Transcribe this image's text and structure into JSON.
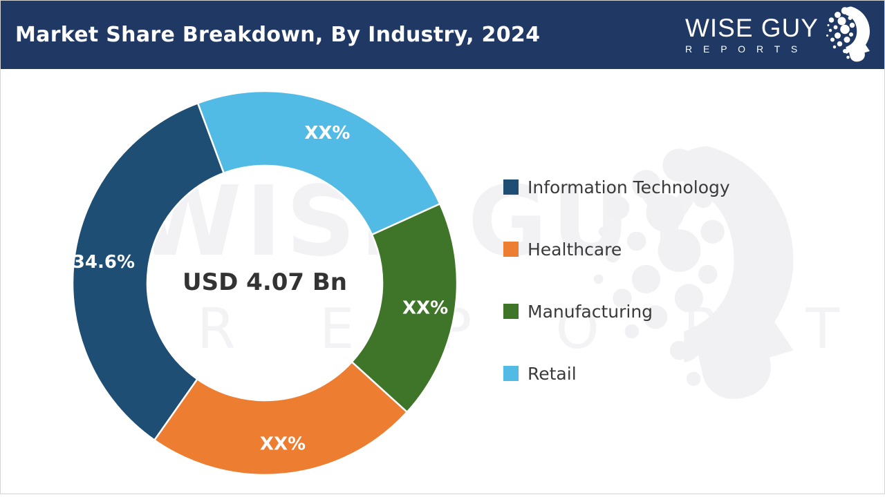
{
  "header": {
    "title": "Market Share Breakdown, By Industry, 2024",
    "logo": {
      "line1": "WISE GUY",
      "line2": "R E P O R T S"
    }
  },
  "watermark": {
    "line1": "WISE GUY",
    "line2": "R E P O R T S"
  },
  "colors": {
    "header_bg": "#1F3864",
    "title_text": "#FFFFFF",
    "legend_text": "#3A3A3A",
    "center_text": "#333333",
    "slice_label_text": "#FFFFFF",
    "page_bg": "#FFFFFF",
    "frame_border": "#D4D4D4",
    "watermark": "#F2F2F5"
  },
  "chart_data": {
    "type": "pie",
    "subtype": "donut",
    "title": "Market Share Breakdown, By Industry, 2024",
    "center_label": "USD 4.07 Bn",
    "legend_position": "right",
    "start_angle_deg": 110.4,
    "direction": "counterclockwise",
    "segments": [
      {
        "label": "Information Technology",
        "display_label": "34.6%",
        "value_pct": 34.6,
        "color": "#1F4E74"
      },
      {
        "label": "Healthcare",
        "display_label": "XX%",
        "value_pct": 23.0,
        "color": "#ED7D31"
      },
      {
        "label": "Manufacturing",
        "display_label": "XX%",
        "value_pct": 18.5,
        "color": "#3F7528"
      },
      {
        "label": "Retail",
        "display_label": "XX%",
        "value_pct": 23.9,
        "color": "#51BBE5"
      }
    ]
  }
}
